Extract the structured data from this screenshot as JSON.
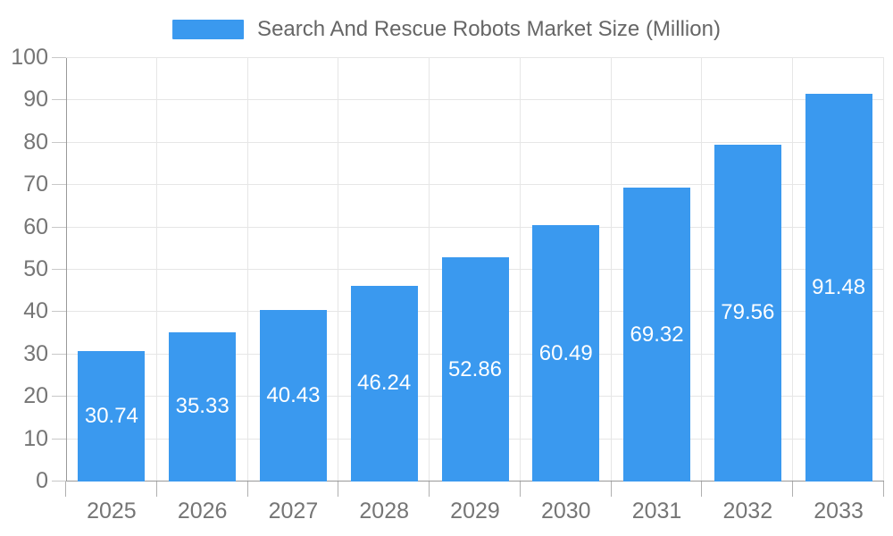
{
  "legend": {
    "label": "Search And Rescue Robots Market Size (Million)"
  },
  "chart_data": {
    "type": "bar",
    "categories": [
      "2025",
      "2026",
      "2027",
      "2028",
      "2029",
      "2030",
      "2031",
      "2032",
      "2033"
    ],
    "series": [
      {
        "name": "Search And Rescue Robots Market Size (Million)",
        "values": [
          30.74,
          35.33,
          40.43,
          46.24,
          52.86,
          60.49,
          69.32,
          79.56,
          91.48
        ]
      }
    ],
    "bar_value_labels": [
      "30.74",
      "35.33",
      "40.43",
      "46.24",
      "52.86",
      "60.49",
      "69.32",
      "79.56",
      "91.48"
    ],
    "xlabel": "",
    "ylabel": "",
    "ylim": [
      0,
      100
    ],
    "ytick_step": 10,
    "ytick_labels": [
      "0",
      "10",
      "20",
      "30",
      "40",
      "50",
      "60",
      "70",
      "80",
      "90",
      "100"
    ],
    "grid": true,
    "legend_position": "top",
    "colors": {
      "bar": "#3A99EF",
      "grid": "#E6E6E6",
      "axis": "#999999",
      "tick_label": "#757575",
      "legend_text": "#666666",
      "bar_label": "#FFFFFF"
    }
  }
}
